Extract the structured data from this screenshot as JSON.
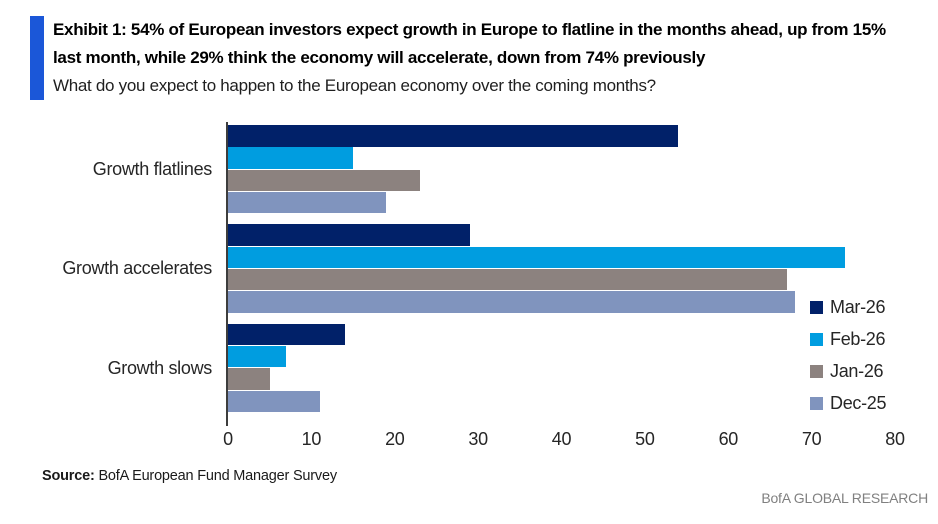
{
  "header": {
    "title": "Exhibit 1: 54% of European investors expect growth in Europe to flatline in the months ahead, up from 15% last month, while 29% think the economy will accelerate, down from 74% previously",
    "subtitle": "What do you expect to happen to the European economy over the coming months?",
    "accent_color": "#1b57d8"
  },
  "chart_data": {
    "type": "bar",
    "orientation": "horizontal",
    "title": "",
    "xlabel": "",
    "ylabel": "",
    "categories": [
      "Growth flatlines",
      "Growth accelerates",
      "Growth slows"
    ],
    "series": [
      {
        "name": "Mar-26",
        "color": "#012169",
        "values": [
          54,
          29,
          14
        ]
      },
      {
        "name": "Feb-26",
        "color": "#009DE0",
        "values": [
          15,
          74,
          7
        ]
      },
      {
        "name": "Jan-26",
        "color": "#8C827F",
        "values": [
          23,
          67,
          5
        ]
      },
      {
        "name": "Dec-25",
        "color": "#8094BE",
        "values": [
          19,
          68,
          11
        ]
      }
    ],
    "xlim": [
      0,
      80
    ],
    "x_ticks": [
      0,
      10,
      20,
      30,
      40,
      50,
      60,
      70,
      80
    ],
    "grid": false,
    "legend_position": "inside-right"
  },
  "footer": {
    "source_label": "Source:",
    "source_text": "BofA European Fund Manager Survey",
    "branding": "BofA GLOBAL RESEARCH"
  }
}
